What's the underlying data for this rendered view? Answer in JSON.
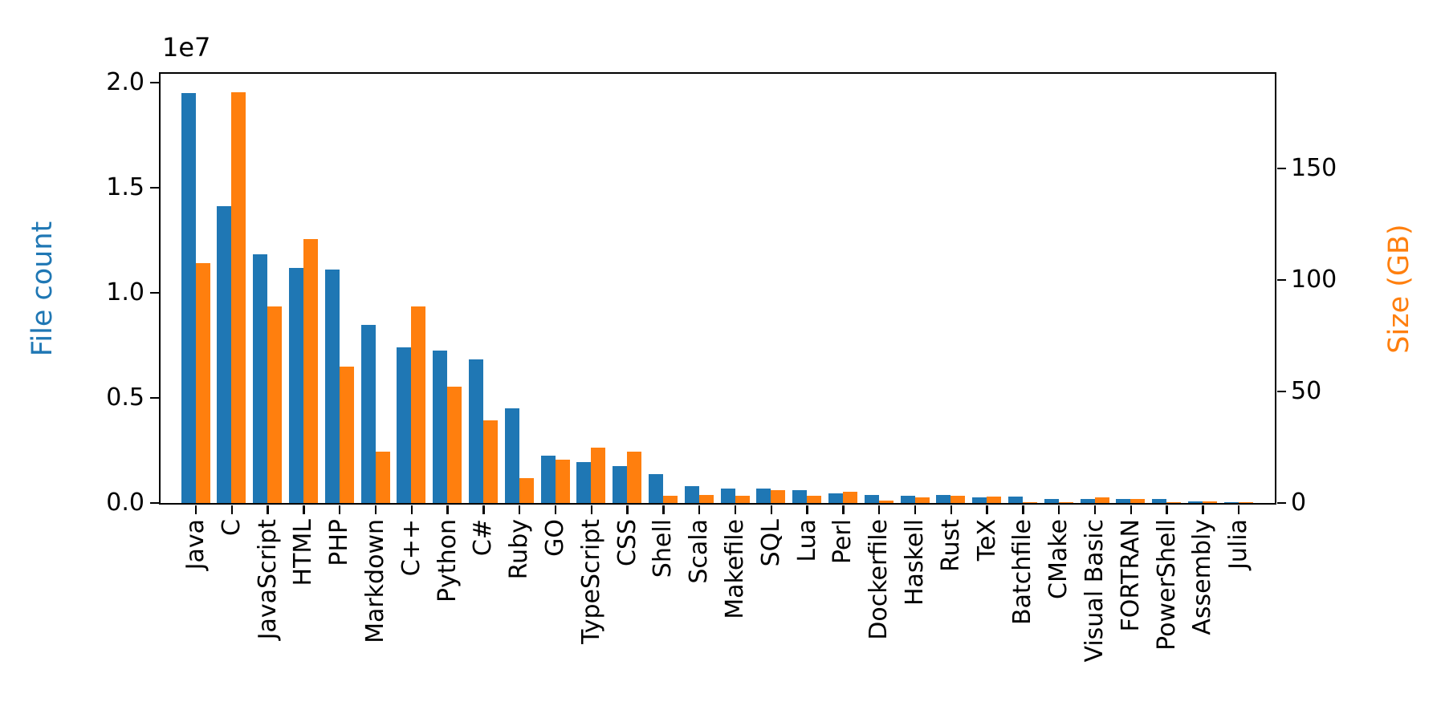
{
  "chart_data": {
    "type": "bar",
    "title": "",
    "categories": [
      "Java",
      "C",
      "JavaScript",
      "HTML",
      "PHP",
      "Markdown",
      "C++",
      "Python",
      "C#",
      "Ruby",
      "GO",
      "TypeScript",
      "CSS",
      "Shell",
      "Scala",
      "Makefile",
      "SQL",
      "Lua",
      "Perl",
      "Dockerfile",
      "Haskell",
      "Rust",
      "TeX",
      "Batchfile",
      "CMake",
      "Visual Basic",
      "FORTRAN",
      "PowerShell",
      "Assembly",
      "Julia"
    ],
    "series": [
      {
        "name": "File count",
        "axis": "left",
        "color": "#1f77b4",
        "values": [
          19500000,
          14100000,
          11800000,
          11150000,
          11100000,
          8440000,
          7400000,
          7250000,
          6830000,
          4470000,
          2250000,
          1910000,
          1720000,
          1370000,
          800000,
          650000,
          650000,
          610000,
          450000,
          360000,
          330000,
          350000,
          260000,
          280000,
          170000,
          190000,
          160000,
          170000,
          70000,
          20000
        ]
      },
      {
        "name": "Size (GB)",
        "axis": "right",
        "color": "#ff7f0e",
        "values": [
          107.5,
          184,
          88,
          118,
          61,
          23,
          88,
          52,
          37,
          10.8,
          19.2,
          24.8,
          23,
          2.9,
          3.6,
          2.9,
          5.5,
          2.9,
          5,
          0.9,
          2.3,
          2.9,
          2.6,
          0.1,
          0.2,
          2.4,
          1.8,
          0.1,
          0.6,
          0.05
        ]
      }
    ],
    "left_axis": {
      "label": "File count",
      "color": "#1f77b4",
      "offset_text": "1e7",
      "tick_values": [
        0,
        5000000,
        10000000,
        15000000,
        20000000
      ],
      "tick_labels": [
        "0.0",
        "0.5",
        "1.0",
        "1.5",
        "2.0"
      ],
      "axis_max": 20420000
    },
    "right_axis": {
      "label": "Size (GB)",
      "color": "#ff7f0e",
      "tick_values": [
        0,
        50,
        100,
        150
      ],
      "tick_labels": [
        "0",
        "50",
        "100",
        "150"
      ],
      "axis_max": 192.4
    },
    "grid": false,
    "legend": false
  }
}
